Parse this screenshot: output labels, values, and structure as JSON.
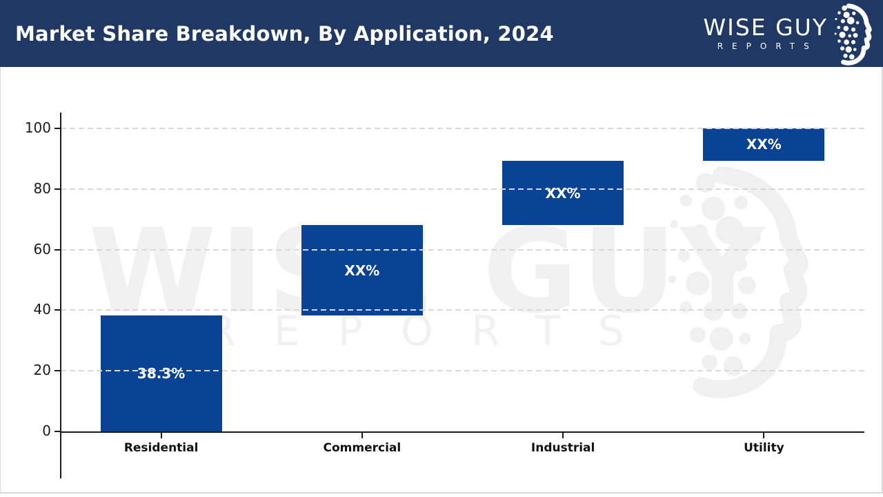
{
  "header": {
    "title": "Market Share Breakdown, By Application, 2024",
    "logo": {
      "line1": "WISE GUY",
      "line2": "REPORTS"
    }
  },
  "watermark": {
    "line1": "WISE GUY",
    "line2": "REPORTS",
    "face_icon": "dotted-head-profile"
  },
  "chart_data": {
    "type": "bar",
    "subtype": "waterfall",
    "title": "Market Share Breakdown, By Application, 2024",
    "categories": [
      "Residential",
      "Commercial",
      "Industrial",
      "Utility"
    ],
    "segments": [
      {
        "category": "Residential",
        "start": 0,
        "end": 38.3,
        "label": "38.3%"
      },
      {
        "category": "Commercial",
        "start": 38.3,
        "end": 68.0,
        "label": "XX%"
      },
      {
        "category": "Industrial",
        "start": 68.0,
        "end": 89.4,
        "label": "XX%"
      },
      {
        "category": "Utility",
        "start": 89.4,
        "end": 100,
        "label": "XX%"
      }
    ],
    "xlabel": "",
    "ylabel": "",
    "ylim": [
      0,
      105
    ],
    "yticks": [
      0,
      20,
      40,
      60,
      80,
      100
    ],
    "grid": "horizontal-dashed",
    "legend": "none",
    "bar_color": "#0a4296",
    "bar_label_color": "#ffffff",
    "axis_color": "#1a1a1a",
    "gridline_color": "#d8d8d8"
  },
  "colors": {
    "header_bg": "#203864",
    "page_bg": "#ffffff",
    "watermark": "#f1f1f1",
    "border": "#d9d9d9"
  }
}
